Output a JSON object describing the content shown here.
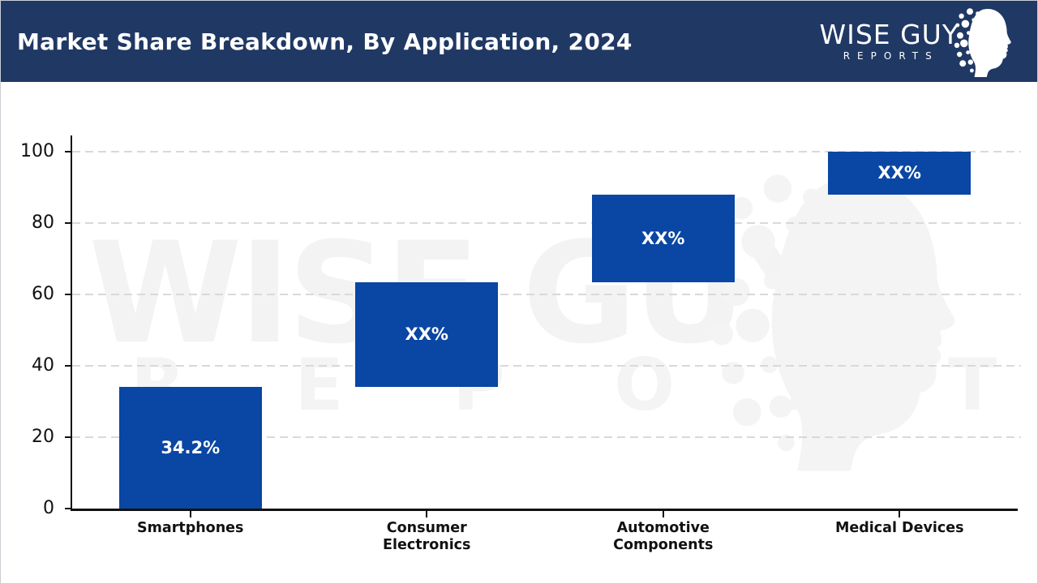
{
  "page": {
    "background": "#ffffff",
    "frame_color": "#c9ced4"
  },
  "header": {
    "background": "#203864",
    "title": "Market Share Breakdown, By Application, 2024",
    "logo": {
      "name": "WISE GUY",
      "sub": "REPORTS"
    }
  },
  "watermark": {
    "name": "WISE GUY",
    "sub": "R E P O R T S",
    "color": "#f3f3f3"
  },
  "chart_data": {
    "type": "bar",
    "subtype": "waterfall",
    "title": "Market Share Breakdown, By Application, 2024",
    "xlabel": "",
    "ylabel": "",
    "ylim": [
      0,
      100
    ],
    "yticks": [
      0,
      20,
      40,
      60,
      80,
      100
    ],
    "grid": {
      "axis": "y",
      "style": "dashed",
      "color": "#d9d9d9"
    },
    "legend": "none",
    "bar_color": "#0a46a3",
    "bar_label_color": "#ffffff",
    "categories": [
      "Smartphones",
      "Consumer Electronics",
      "Automotive Components",
      "Medical Devices"
    ],
    "category_label_lines": [
      [
        "Smartphones"
      ],
      [
        "Consumer",
        "Electronics"
      ],
      [
        "Automotive",
        "Components"
      ],
      [
        "Medical Devices"
      ]
    ],
    "segments": [
      {
        "category": "Smartphones",
        "start": 0,
        "end": 34.2,
        "label": "34.2%"
      },
      {
        "category": "Consumer Electronics",
        "start": 34.2,
        "end": 63.4,
        "label": "XX%"
      },
      {
        "category": "Automotive Components",
        "start": 63.4,
        "end": 88,
        "label": "XX%"
      },
      {
        "category": "Medical Devices",
        "start": 88,
        "end": 100,
        "label": "XX%"
      }
    ]
  }
}
